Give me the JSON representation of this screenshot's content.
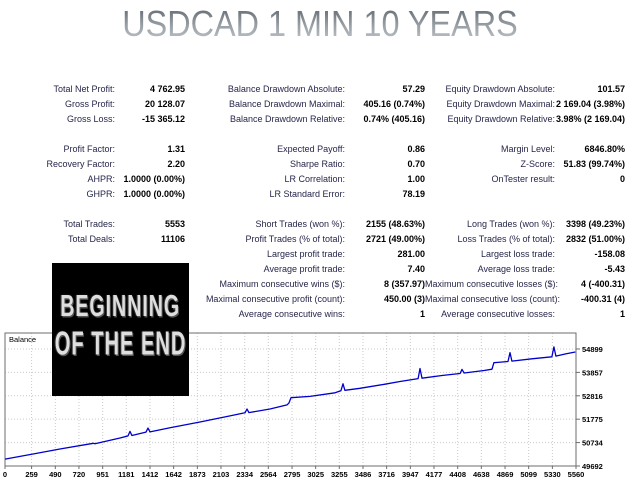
{
  "title": "USDCAD 1 MIN 10 YEARS",
  "overlay_image": {
    "line1": "BEGINNING",
    "line2": "OF THE END"
  },
  "stats": {
    "groups": [
      {
        "rows": [
          [
            "Total Net Profit:",
            "4 762.95",
            "Balance Drawdown Absolute:",
            "57.29",
            "Equity Drawdown Absolute:",
            "101.57"
          ],
          [
            "Gross Profit:",
            "20 128.07",
            "Balance Drawdown Maximal:",
            "405.16 (0.74%)",
            "Equity Drawdown Maximal:",
            "2 169.04 (3.98%)"
          ],
          [
            "Gross Loss:",
            "-15 365.12",
            "Balance Drawdown Relative:",
            "0.74% (405.16)",
            "Equity Drawdown Relative:",
            "3.98% (2 169.04)"
          ]
        ]
      },
      {
        "rows": [
          [
            "Profit Factor:",
            "1.31",
            "Expected Payoff:",
            "0.86",
            "Margin Level:",
            "6846.80%"
          ],
          [
            "Recovery Factor:",
            "2.20",
            "Sharpe Ratio:",
            "0.70",
            "Z-Score:",
            "51.83 (99.74%)"
          ],
          [
            "AHPR:",
            "1.0000 (0.00%)",
            "LR Correlation:",
            "1.00",
            "OnTester result:",
            "0"
          ],
          [
            "GHPR:",
            "1.0000 (0.00%)",
            "LR Standard Error:",
            "78.19",
            "",
            ""
          ]
        ]
      },
      {
        "rows": [
          [
            "Total Trades:",
            "5553",
            "Short Trades (won %):",
            "2155 (48.63%)",
            "Long Trades (won %):",
            "3398 (49.23%)"
          ],
          [
            "Total Deals:",
            "11106",
            "Profit Trades (% of total):",
            "2721 (49.00%)",
            "Loss Trades (% of total):",
            "2832 (51.00%)"
          ],
          [
            "",
            "",
            "Largest profit trade:",
            "281.00",
            "Largest loss trade:",
            "-158.08"
          ],
          [
            "",
            "",
            "Average profit trade:",
            "7.40",
            "Average loss trade:",
            "-5.43"
          ],
          [
            "",
            "",
            "Maximum consecutive wins ($):",
            "8 (357.97)",
            "Maximum consecutive losses ($):",
            "4 (-400.31)"
          ],
          [
            "",
            "",
            "Maximal consecutive profit (count):",
            "450.00 (3)",
            "Maximal consecutive loss (count):",
            "-400.31 (4)"
          ],
          [
            "",
            "",
            "Average consecutive wins:",
            "1",
            "Average consecutive losses:",
            "1"
          ]
        ]
      }
    ]
  },
  "colors": {
    "balance_line": "#0000cc",
    "grid": "#c9c9c9",
    "chart_border": "#6e6e6e",
    "axis_text": "#000000"
  },
  "chart_data": {
    "type": "line",
    "title": "Balance",
    "xlabel": "",
    "ylabel": "",
    "grid": true,
    "legend_position": "none",
    "x_range": [
      0,
      5560
    ],
    "y_range": [
      49692,
      55610
    ],
    "x_ticks": [
      0,
      259,
      490,
      720,
      951,
      1181,
      1412,
      1642,
      1873,
      2103,
      2334,
      2564,
      2795,
      3025,
      3255,
      3486,
      3716,
      3947,
      4177,
      4408,
      4638,
      4869,
      5099,
      5330,
      5560
    ],
    "y_ticks": [
      49692,
      50734,
      51775,
      52816,
      53857,
      54899
    ],
    "series": [
      {
        "name": "Balance",
        "points": [
          [
            0,
            50000
          ],
          [
            300,
            50250
          ],
          [
            535,
            50450
          ],
          [
            860,
            50700
          ],
          [
            876,
            50680
          ],
          [
            1120,
            50940
          ],
          [
            1198,
            51030
          ],
          [
            1217,
            51230
          ],
          [
            1236,
            51050
          ],
          [
            1373,
            51200
          ],
          [
            1392,
            51380
          ],
          [
            1412,
            51210
          ],
          [
            1607,
            51390
          ],
          [
            1899,
            51650
          ],
          [
            2191,
            51920
          ],
          [
            2337,
            52060
          ],
          [
            2356,
            52230
          ],
          [
            2375,
            52070
          ],
          [
            2580,
            52230
          ],
          [
            2746,
            52410
          ],
          [
            2765,
            52500
          ],
          [
            2785,
            52730
          ],
          [
            2970,
            52790
          ],
          [
            3213,
            52950
          ],
          [
            3271,
            53040
          ],
          [
            3291,
            53350
          ],
          [
            3310,
            53060
          ],
          [
            3456,
            53150
          ],
          [
            3700,
            53330
          ],
          [
            3846,
            53450
          ],
          [
            4022,
            53580
          ],
          [
            4041,
            54030
          ],
          [
            4060,
            53600
          ],
          [
            4255,
            53720
          ],
          [
            4431,
            53810
          ],
          [
            4450,
            53990
          ],
          [
            4470,
            53830
          ],
          [
            4665,
            53940
          ],
          [
            4742,
            54000
          ],
          [
            4761,
            54290
          ],
          [
            4800,
            54300
          ],
          [
            4898,
            54340
          ],
          [
            4917,
            54740
          ],
          [
            4936,
            54360
          ],
          [
            5130,
            54460
          ],
          [
            5325,
            54550
          ],
          [
            5345,
            54990
          ],
          [
            5364,
            54580
          ],
          [
            5460,
            54680
          ],
          [
            5553,
            54763
          ]
        ]
      }
    ]
  }
}
